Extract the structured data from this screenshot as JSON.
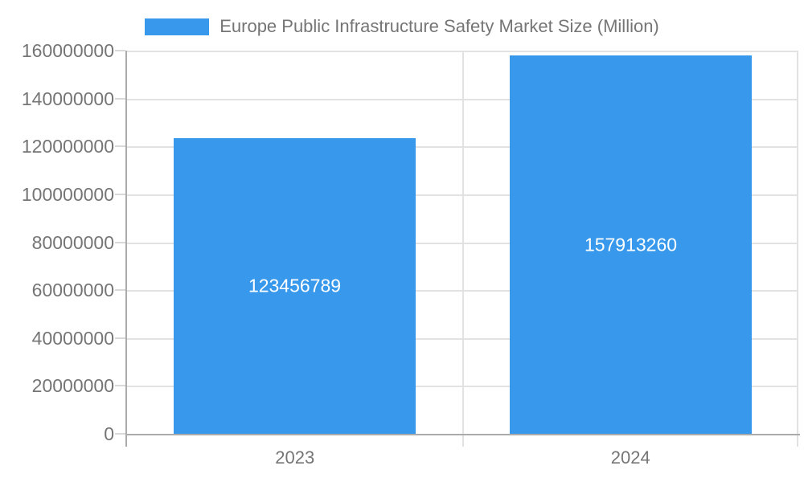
{
  "chart_data": {
    "type": "bar",
    "title": "Europe Public Infrastructure Safety Market Size (Million)",
    "categories": [
      "2023",
      "2024"
    ],
    "values": [
      123456789,
      157913260
    ],
    "bar_value_labels": [
      "123456789",
      "157913260"
    ],
    "xlabel": "",
    "ylabel": "",
    "ylim": [
      0,
      160000000
    ],
    "y_ticks": [
      0,
      20000000,
      40000000,
      60000000,
      80000000,
      100000000,
      120000000,
      140000000,
      160000000
    ],
    "grid": true,
    "legend_position": "top-center",
    "bar_width_ratio": 0.72,
    "colors": {
      "bar": "#3899EC",
      "grid": "#E2E2E2",
      "axis": "#ABABAB",
      "tick": "#D9D9D9",
      "text": "#757575",
      "bar_label": "#FFFFFF",
      "background": "#FFFFFF"
    }
  }
}
